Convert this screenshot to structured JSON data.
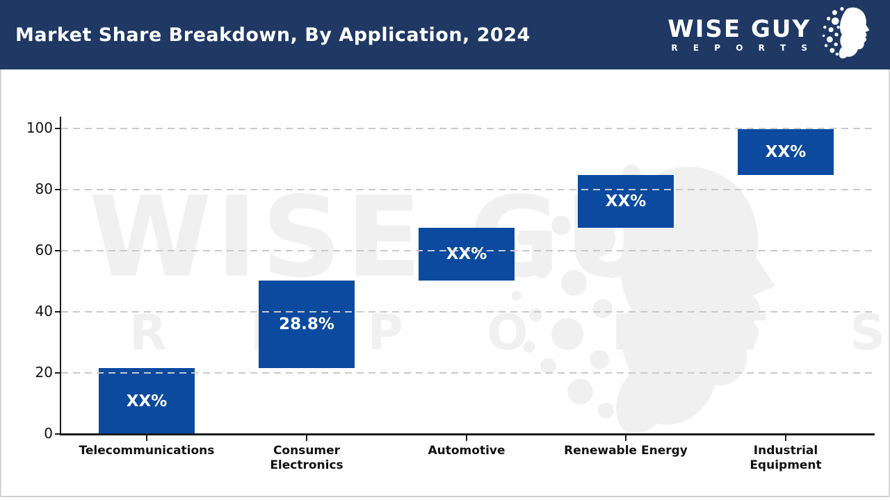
{
  "header": {
    "title": "Market Share Breakdown, By Application, 2024",
    "logo": {
      "name1": "WISE GUY",
      "name2": "R E P O R T S"
    }
  },
  "watermark": {
    "name1": "WISE GUY",
    "name2": "R E P O R T S"
  },
  "colors": {
    "header_bg": "#1f3864",
    "bar": "#0b4a9f",
    "bar_label": "#ffffff",
    "axis": "#1a1a1a",
    "grid": "#c9c9c9",
    "watermark": "#f0f0f1"
  },
  "chart_data": {
    "type": "bar",
    "subtype": "waterfall-stacked",
    "title": "Market Share Breakdown, By Application, 2024",
    "xlabel": "",
    "ylabel": "",
    "ylim": [
      0,
      105
    ],
    "yticks": [
      0,
      20,
      40,
      60,
      80,
      100
    ],
    "grid": "horizontal-dashed",
    "legend": "none",
    "categories": [
      "Telecommunications",
      "Consumer Electronics",
      "Automotive",
      "Renewable Energy",
      "Industrial Equipment"
    ],
    "segments": [
      {
        "category": "Telecommunications",
        "start": 0,
        "end": 21.5,
        "display_label": "XX%",
        "estimated_value": 21.5
      },
      {
        "category": "Consumer Electronics",
        "start": 21.5,
        "end": 50.3,
        "display_label": "28.8%",
        "estimated_value": 28.8
      },
      {
        "category": "Automotive",
        "start": 50.3,
        "end": 67.5,
        "display_label": "XX%",
        "estimated_value": 17.2
      },
      {
        "category": "Renewable Energy",
        "start": 67.5,
        "end": 84.8,
        "display_label": "XX%",
        "estimated_value": 17.3
      },
      {
        "category": "Industrial Equipment",
        "start": 84.8,
        "end": 99.8,
        "display_label": "XX%",
        "estimated_value": 15.0
      }
    ]
  }
}
